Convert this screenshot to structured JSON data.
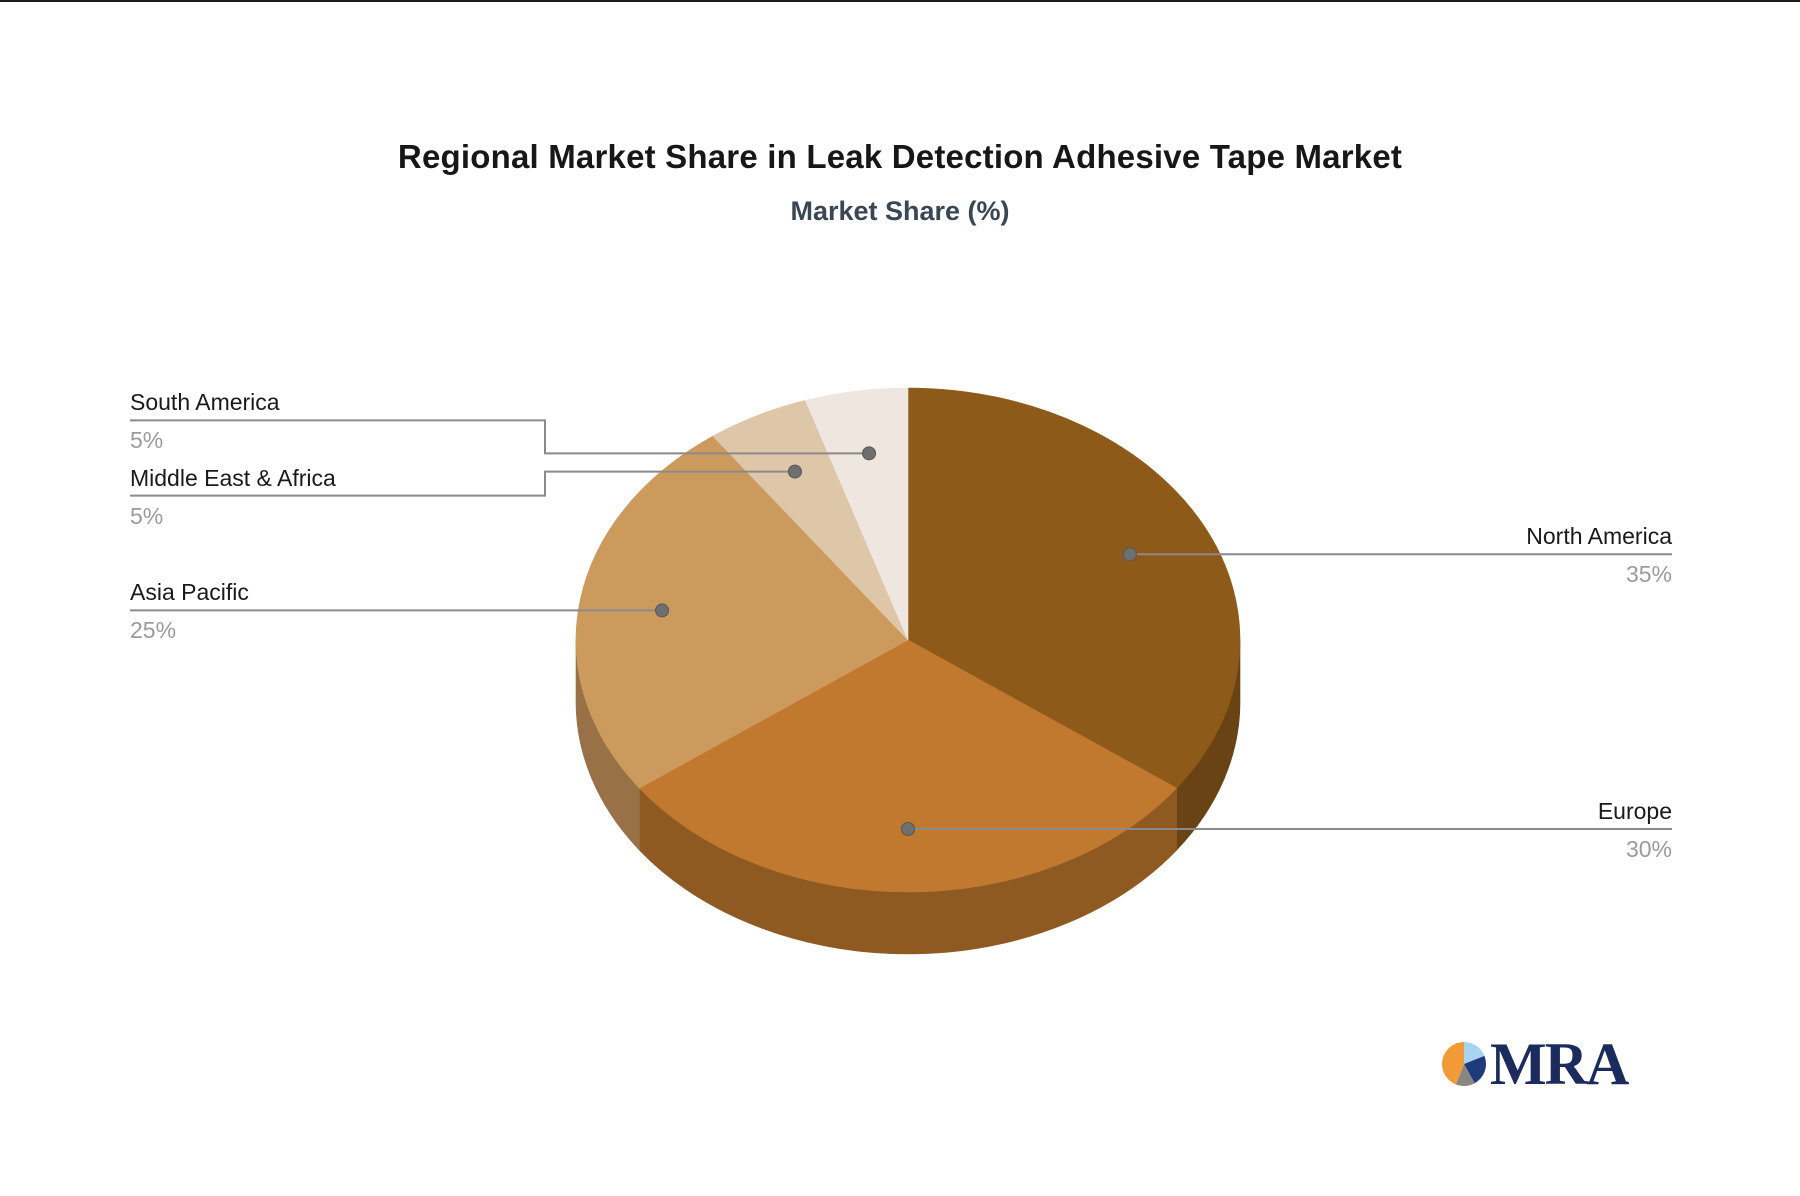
{
  "page": {
    "background": "#ffffff",
    "top_edge_color": "#1c1c1c"
  },
  "header": {
    "title": "Regional Market Share in Leak Detection Adhesive Tape Market",
    "subtitle": "Market Share (%)",
    "title_color": "#171717",
    "subtitle_color": "#3b4655"
  },
  "chart_data": {
    "type": "pie",
    "title": "Regional Market Share in Leak Detection Adhesive Tape Market",
    "subtitle": "Market Share (%)",
    "unit": "%",
    "effect": "3d",
    "start_angle": "12-oclock",
    "direction": "clockwise",
    "categories": [
      "North America",
      "Europe",
      "Asia Pacific",
      "Middle East & Africa",
      "South America"
    ],
    "values": [
      35,
      30,
      25,
      5,
      5
    ],
    "slices": [
      {
        "label": "North America",
        "value": 35,
        "display": "35%",
        "color": "#8E5A1A",
        "label_side": "right"
      },
      {
        "label": "Europe",
        "value": 30,
        "display": "30%",
        "color": "#C0792E",
        "label_side": "right"
      },
      {
        "label": "Asia Pacific",
        "value": 25,
        "display": "25%",
        "color": "#CD9A5E",
        "label_side": "left"
      },
      {
        "label": "Middle East & Africa",
        "value": 5,
        "display": "5%",
        "color": "#DEC7A8",
        "label_side": "left"
      },
      {
        "label": "South America",
        "value": 5,
        "display": "5%",
        "color": "#EFE6E0",
        "label_side": "left"
      }
    ],
    "label_text_color": "#1a1a1a",
    "value_text_color": "#9b9b9b",
    "leader_line_color": "#8a8a8a",
    "leader_dot_color": "#6f6f6f",
    "legend": "none"
  },
  "logo": {
    "text": "MRA",
    "text_color": "#1c2b5e",
    "icon_slices": [
      {
        "name": "light-blue",
        "color": "#A8D4F0",
        "fraction": 0.19
      },
      {
        "name": "navy",
        "color": "#1E3C7C",
        "fraction": 0.23
      },
      {
        "name": "gray",
        "color": "#8C8680",
        "fraction": 0.14
      },
      {
        "name": "orange",
        "color": "#F09A38",
        "fraction": 0.44
      }
    ]
  }
}
